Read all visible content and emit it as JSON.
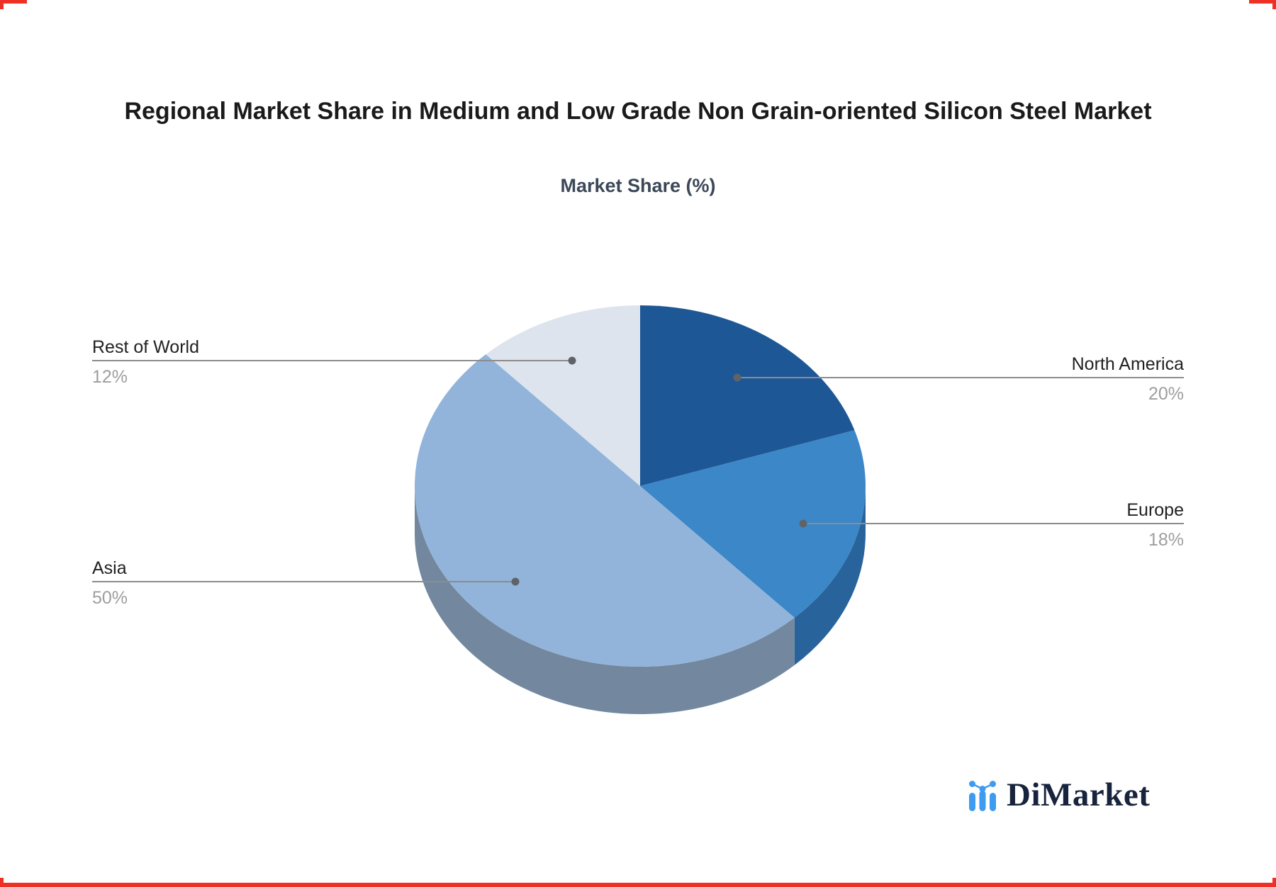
{
  "chart": {
    "title": "Regional Market Share in Medium and Low Grade Non Grain-oriented Silicon Steel Market",
    "subtitle": "Market Share (%)"
  },
  "chart_data": {
    "type": "pie",
    "style": "pie-3d",
    "title": "Regional Market Share in Medium and Low Grade Non Grain-oriented Silicon Steel Market",
    "subtitle": "Market Share (%)",
    "unit": "%",
    "start_angle_deg": 0,
    "direction": "clockwise",
    "legend_position": "none",
    "segments": [
      {
        "label": "North America",
        "value": 20,
        "display_value": "20%",
        "color": "#1E5796",
        "side_color": "#17446F"
      },
      {
        "label": "Europe",
        "value": 18,
        "display_value": "18%",
        "color": "#3C87C8",
        "side_color": "#29639B"
      },
      {
        "label": "Asia",
        "value": 50,
        "display_value": "50%",
        "color": "#92B4DA",
        "side_color": "#73889E"
      },
      {
        "label": "Rest of World",
        "value": 12,
        "display_value": "12%",
        "color": "#DDE4EE",
        "side_color": "#B7C1CF"
      }
    ]
  },
  "logo": {
    "text": "DiMarket",
    "icon": "bar-chart-icon",
    "accent_color": "#3D9BF0",
    "text_color": "#18243D"
  },
  "colors": {
    "title": "#1A1A1A",
    "subtitle": "#3C4858",
    "label_text": "#212121",
    "value_text": "#9E9E9E",
    "leader_line": "#8C8C8C",
    "leader_dot": "#5F6368",
    "background": "#FFFFFF",
    "crop_mark": "#ED3124"
  }
}
